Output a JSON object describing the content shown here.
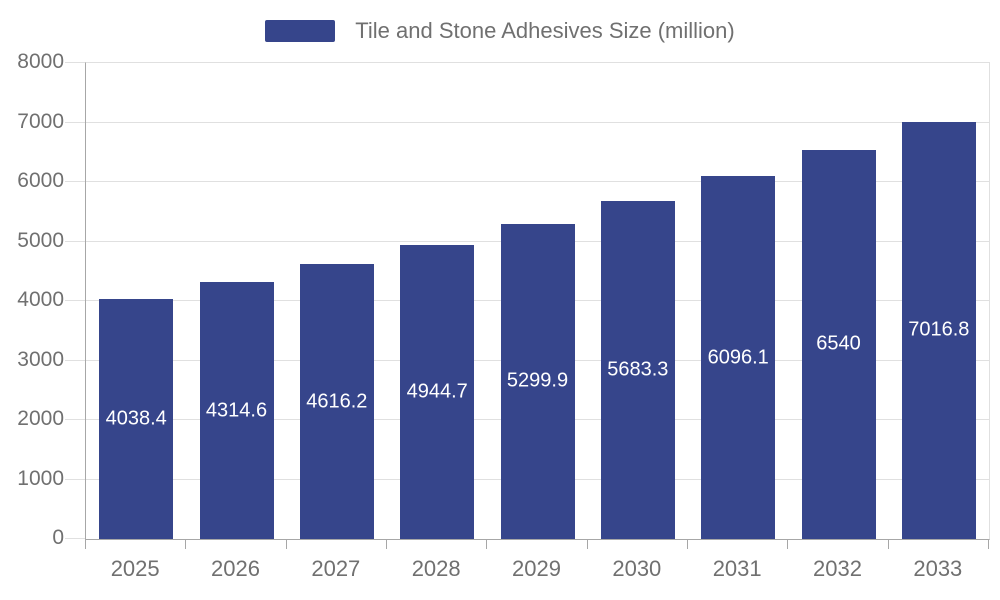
{
  "chart_data": {
    "type": "bar",
    "title": "Tile and Stone Adhesives Size (million)",
    "categories": [
      "2025",
      "2026",
      "2027",
      "2028",
      "2029",
      "2030",
      "2031",
      "2032",
      "2033"
    ],
    "series": [
      {
        "name": "Tile and Stone Adhesives Size (million)",
        "values": [
          4038.4,
          4314.6,
          4616.2,
          4944.7,
          5299.9,
          5683.3,
          6096.1,
          6540,
          7016.8
        ],
        "labels": [
          "4038.4",
          "4314.6",
          "4616.2",
          "4944.7",
          "5299.9",
          "5683.3",
          "6096.1",
          "6540",
          "7016.8"
        ]
      }
    ],
    "xlabel": "",
    "ylabel": "",
    "ylim": [
      0,
      8000
    ],
    "yticks": [
      0,
      1000,
      2000,
      3000,
      4000,
      5000,
      6000,
      7000,
      8000
    ],
    "grid": "horizontal",
    "legend_position": "top-center"
  },
  "legend": {
    "label": "Tile and Stone Adhesives Size (million)"
  },
  "colors": {
    "bar": "#36458B",
    "grid_line": "#e0e0e0",
    "axis_line": "#a7a7a7",
    "tick_label": "#707070",
    "bar_label": "#ffffff",
    "background": "#ffffff"
  }
}
